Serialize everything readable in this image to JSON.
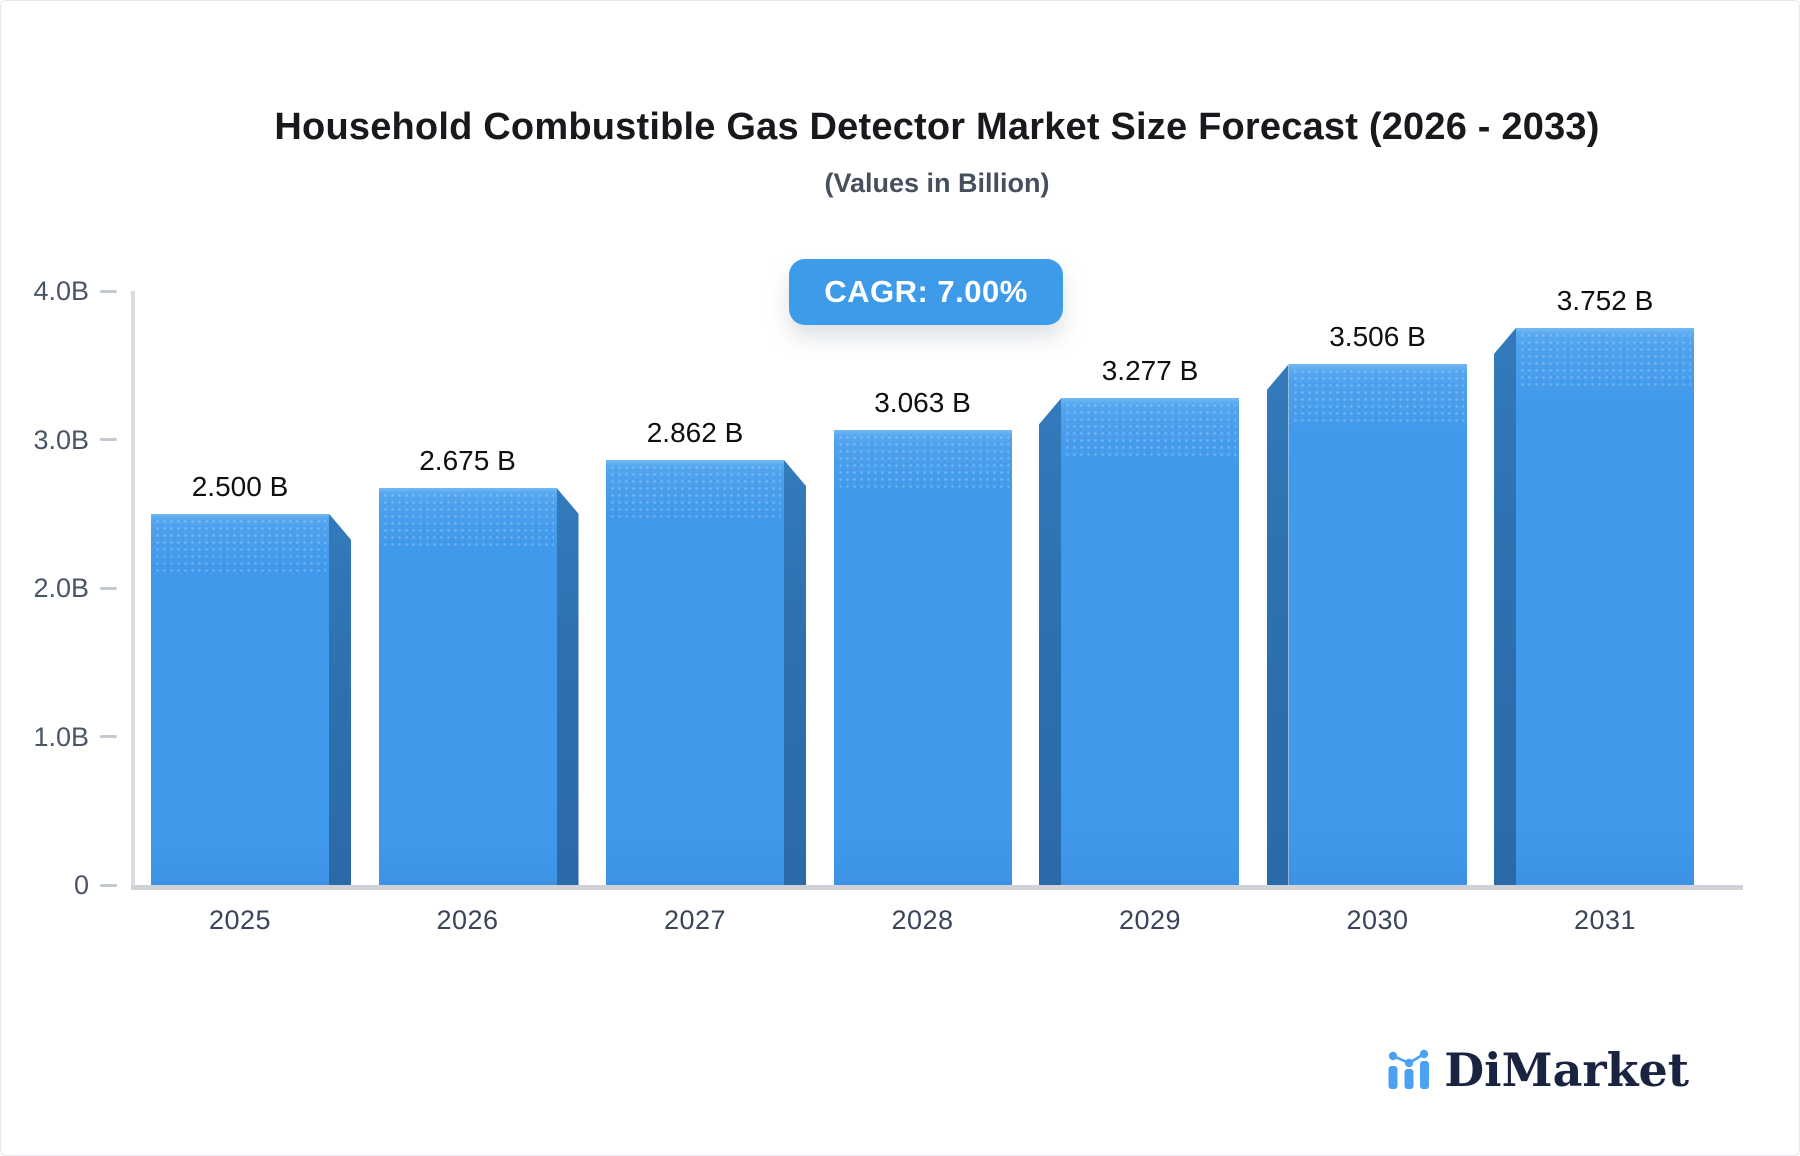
{
  "header": {
    "title": "Household Combustible Gas Detector Market Size Forecast (2026 - 2033)",
    "subtitle": "(Values in Billion)"
  },
  "badge": {
    "label": "CAGR: 7.00%"
  },
  "chart_data": {
    "type": "bar",
    "title": "Household Combustible Gas Detector Market Size Forecast (2026 - 2033)",
    "subtitle": "(Values in Billion)",
    "unit": "Billion",
    "cagr": "7.00%",
    "categories": [
      "2025",
      "2026",
      "2027",
      "2028",
      "2029",
      "2030",
      "2031"
    ],
    "values": [
      2.5,
      2.675,
      2.862,
      3.063,
      3.277,
      3.506,
      3.752
    ],
    "value_labels": [
      "2.500 B",
      "2.675 B",
      "2.862 B",
      "3.063 B",
      "3.277 B",
      "3.506 B",
      "3.752 B"
    ],
    "xlabel": "",
    "ylabel": "",
    "ylim": [
      0,
      4
    ],
    "yticks": [
      {
        "value": 4,
        "label": "4.0B"
      },
      {
        "value": 3,
        "label": "3.0B"
      },
      {
        "value": 2,
        "label": "2.0B"
      },
      {
        "value": 1,
        "label": "1.0B"
      },
      {
        "value": 0,
        "label": "0"
      }
    ],
    "grid": false,
    "legend": false,
    "bar_color": "#4199eb",
    "bar_side_color": "#2e72b1",
    "accent_color": "#3d9be9"
  },
  "logo": {
    "text": "DiMarket",
    "icon": "mini-bar-chart-icon",
    "text_color": "#1a2440",
    "icon_color": "#4ba1f2"
  }
}
